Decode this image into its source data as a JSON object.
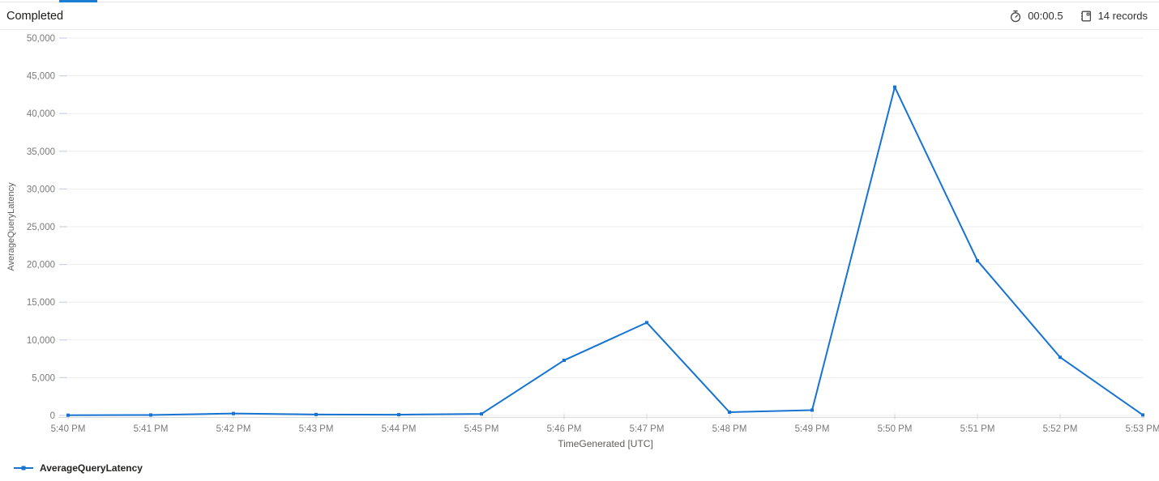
{
  "header": {
    "status": "Completed",
    "elapsed_time": "00:00.5",
    "record_count": "14 records"
  },
  "chart_data": {
    "type": "line",
    "title": "",
    "xlabel": "TimeGenerated [UTC]",
    "ylabel": "AverageQueryLatency",
    "categories": [
      "5:40 PM",
      "5:41 PM",
      "5:42 PM",
      "5:43 PM",
      "5:44 PM",
      "5:45 PM",
      "5:46 PM",
      "5:47 PM",
      "5:48 PM",
      "5:49 PM",
      "5:50 PM",
      "5:51 PM",
      "5:52 PM",
      "5:53 PM"
    ],
    "series": [
      {
        "name": "AverageQueryLatency",
        "color": "#1673d1",
        "values": [
          30,
          60,
          250,
          120,
          100,
          200,
          7300,
          12300,
          430,
          700,
          43500,
          20500,
          7700,
          60
        ]
      }
    ],
    "ylim": [
      0,
      50000
    ],
    "yticks": [
      0,
      5000,
      10000,
      15000,
      20000,
      25000,
      30000,
      35000,
      40000,
      45000,
      50000
    ],
    "ytick_labels": [
      "0",
      "5,000",
      "10,000",
      "15,000",
      "20,000",
      "25,000",
      "30,000",
      "35,000",
      "40,000",
      "45,000",
      "50,000"
    ],
    "grid": true,
    "legend_position": "bottom-left"
  },
  "legend": {
    "items": [
      {
        "label": "AverageQueryLatency",
        "color": "#1673d1"
      }
    ]
  },
  "colors": {
    "accent": "#1673d1",
    "tab_indicator": "#1a7fd4",
    "gridline": "#ededed",
    "axis_line": "#d9d9d9",
    "y_tick_dash": "#c9d2e4",
    "tick_text": "#7a7a7a",
    "text_primary": "#252423"
  }
}
